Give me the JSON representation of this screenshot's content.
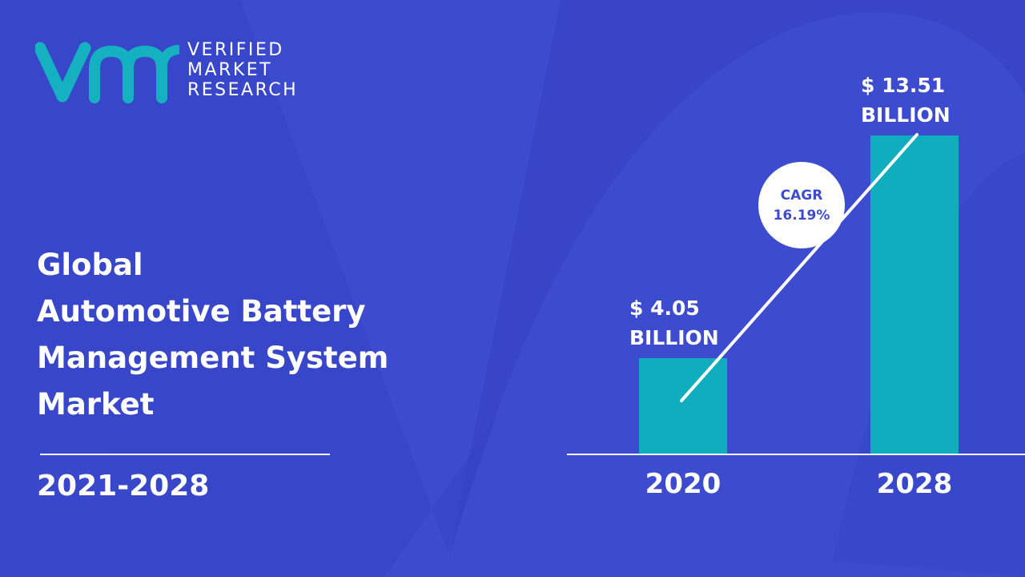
{
  "brand": {
    "line1": "VERIFIED",
    "line2": "MARKET",
    "line3": "RESEARCH"
  },
  "title_lines": [
    "Global",
    "Automotive Battery",
    "Management System",
    "Market"
  ],
  "period": "2021-2028",
  "colors": {
    "background": "#3d4bcf",
    "bar": "#10adbf",
    "logo": "#15b1c0",
    "text": "#ffffff",
    "cagr_text": "#3d4bcf"
  },
  "chart_data": {
    "type": "bar",
    "categories": [
      "2020",
      "2028"
    ],
    "values": [
      4.05,
      13.51
    ],
    "value_labels": [
      [
        "$ 4.05",
        "BILLION"
      ],
      [
        "$ 13.51",
        "BILLION"
      ]
    ],
    "unit": "BILLION",
    "cagr_label": "CAGR",
    "cagr_value": "16.19%",
    "ylim": [
      0,
      16.2
    ],
    "grid": false
  }
}
